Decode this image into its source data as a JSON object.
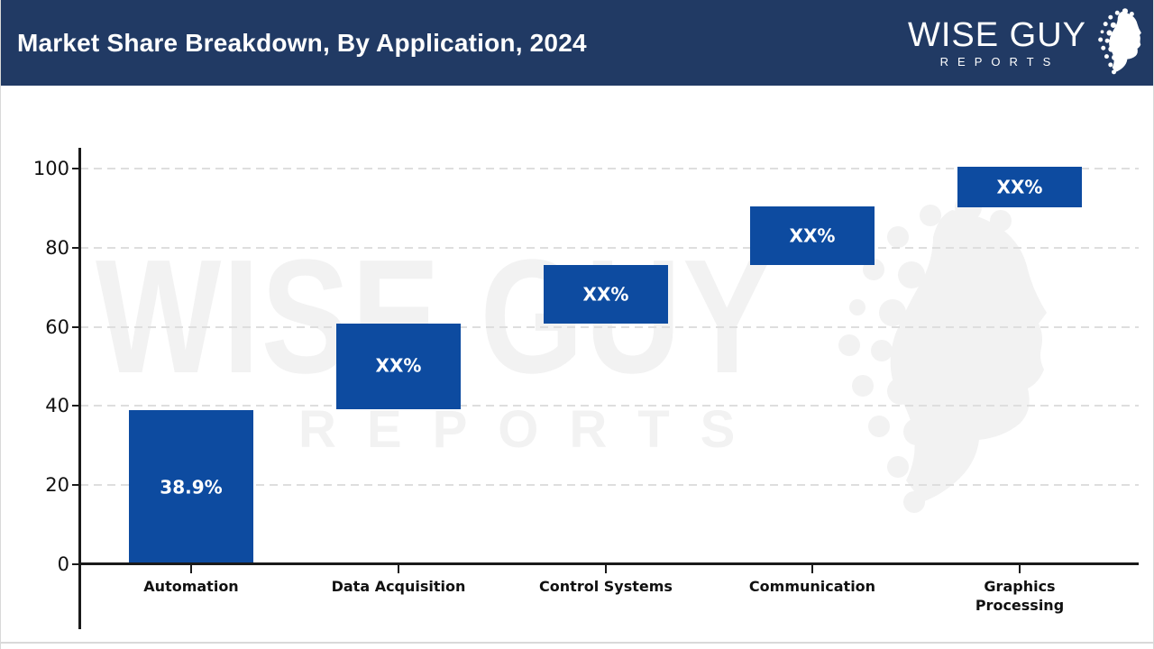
{
  "header": {
    "title": "Market Share Breakdown, By Application, 2024",
    "logo": {
      "wordmark": "WISE GUY",
      "subtitle": "REPORTS"
    },
    "bg_color": "#213a64"
  },
  "watermark": {
    "line1": "WISE GUY",
    "line2": "REPORTS"
  },
  "chart_data": {
    "type": "bar",
    "variant": "floating-waterfall-segments",
    "title": "Market Share Breakdown, By Application, 2024",
    "categories": [
      "Automation",
      "Data Acquisition",
      "Control Systems",
      "Communication",
      "Graphics Processing"
    ],
    "category_display": [
      [
        "Automation"
      ],
      [
        "Data Acquisition"
      ],
      [
        "Control Systems"
      ],
      [
        "Communication"
      ],
      [
        "Graphics",
        "Processing"
      ]
    ],
    "segments": [
      {
        "category": "Automation",
        "start": 0,
        "end": 38.9,
        "label": "38.9%"
      },
      {
        "category": "Data Acquisition",
        "start": 39.2,
        "end": 60.8,
        "label": "XX%"
      },
      {
        "category": "Control Systems",
        "start": 60.8,
        "end": 75.6,
        "label": "XX%"
      },
      {
        "category": "Communication",
        "start": 75.6,
        "end": 90.4,
        "label": "XX%"
      },
      {
        "category": "Graphics Processing",
        "start": 90.2,
        "end": 100.4,
        "label": "XX%"
      }
    ],
    "y_ticks": [
      0,
      20,
      40,
      60,
      80,
      100
    ],
    "ylim": [
      0,
      105
    ],
    "xlabel": "",
    "ylabel": "",
    "grid": "horizontal-dashed",
    "legend": "none",
    "bar_color": "#0d4ba0",
    "bar_label_color": "#ffffff",
    "axis_color": "#1a1a1a"
  }
}
